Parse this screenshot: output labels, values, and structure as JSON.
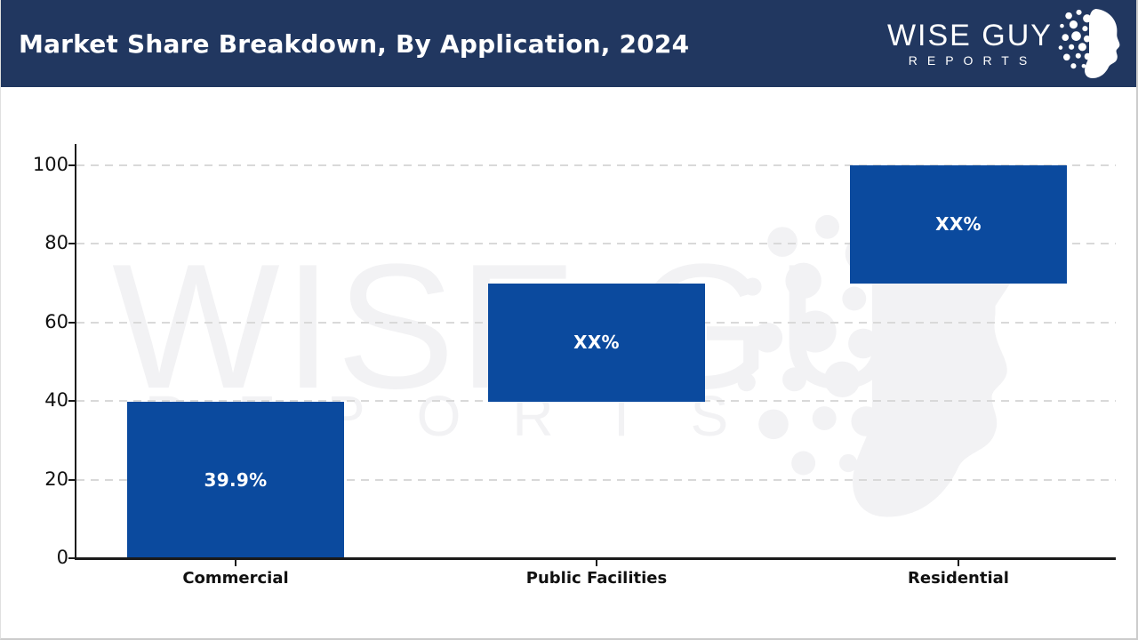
{
  "header": {
    "title": "Market Share Breakdown, By Application, 2024",
    "bg_color": "#213760",
    "logo": {
      "line1": "WISE GUY",
      "line2": "REPORTS"
    }
  },
  "watermark": {
    "line1": "WISE GUY",
    "line2": "REPORTS"
  },
  "chart_data": {
    "type": "bar",
    "subtype": "waterfall",
    "title": "Market Share Breakdown, By Application, 2024",
    "categories": [
      "Commercial",
      "Public Facilities",
      "Residential"
    ],
    "series": [
      {
        "name": "Market Share",
        "segments": [
          {
            "from": 0,
            "to": 39.9
          },
          {
            "from": 39.9,
            "to": 70
          },
          {
            "from": 70,
            "to": 100
          }
        ]
      }
    ],
    "bar_labels": [
      "39.9%",
      "XX%",
      "XX%"
    ],
    "ylim": [
      0,
      100
    ],
    "yticks": [
      0,
      20,
      40,
      60,
      80,
      100
    ],
    "xlabel": "",
    "ylabel": "",
    "grid": "horizontal-dashed",
    "legend": "none",
    "bar_color": "#0B4A9E",
    "bar_label_color": "#FFFFFF",
    "grid_color": "#D9D9D9",
    "axis_color": "#1A1A1A"
  }
}
